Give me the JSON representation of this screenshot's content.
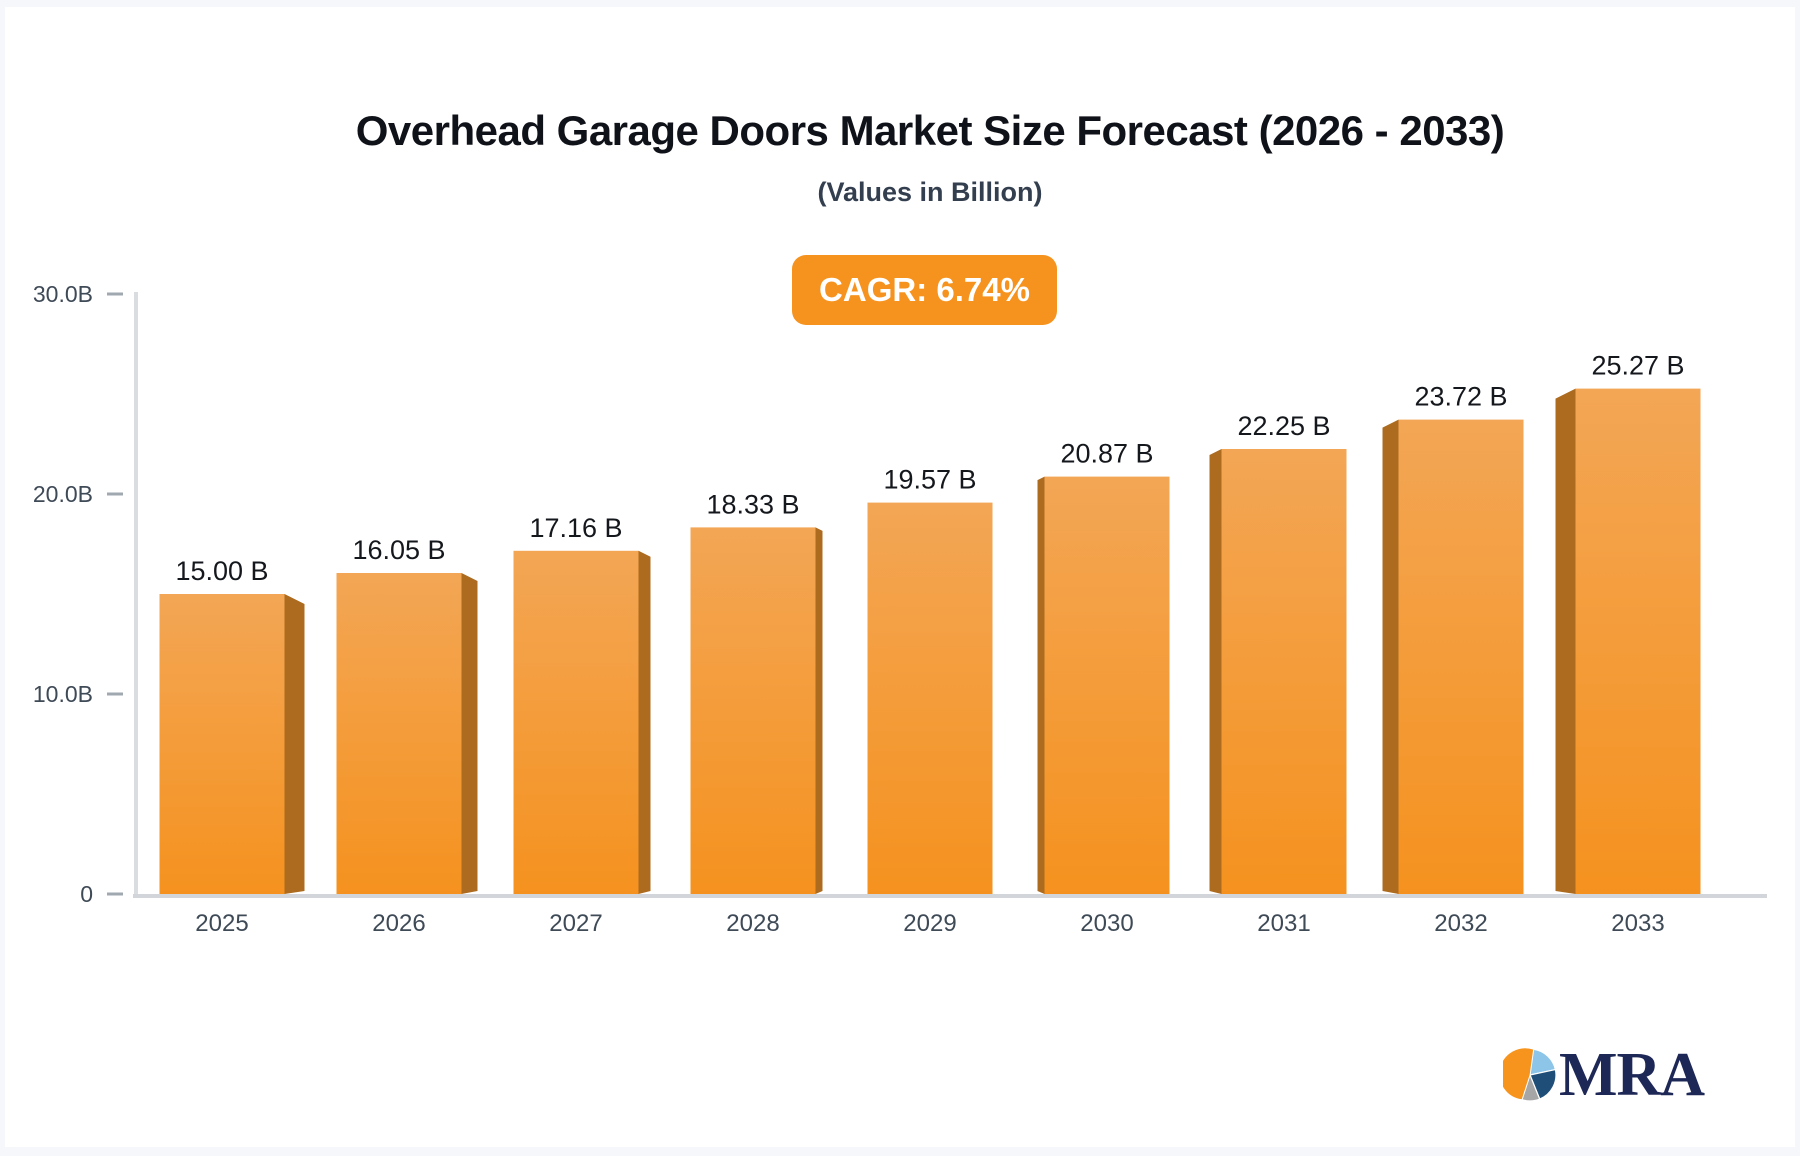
{
  "header": {
    "title": "Overhead Garage Doors Market Size Forecast (2026 - 2033)",
    "subtitle": "(Values in Billion)"
  },
  "badge": {
    "label": "CAGR: 6.74%",
    "cagr_percent": 6.74,
    "background": "#f6931e",
    "text_color": "#ffffff"
  },
  "chart_data": {
    "type": "bar",
    "title": "Overhead Garage Doors Market Size Forecast (2026 - 2033)",
    "subtitle": "(Values in Billion)",
    "categories": [
      "2025",
      "2026",
      "2027",
      "2028",
      "2029",
      "2030",
      "2031",
      "2032",
      "2033"
    ],
    "values": [
      15.0,
      16.05,
      17.16,
      18.33,
      19.57,
      20.87,
      22.25,
      23.72,
      25.27
    ],
    "value_labels": [
      "15.00 B",
      "16.05 B",
      "17.16 B",
      "18.33 B",
      "19.57 B",
      "20.87 B",
      "22.25 B",
      "23.72 B",
      "25.27 B"
    ],
    "xlabel": "",
    "ylabel": "",
    "ylim": [
      0,
      30
    ],
    "yticks": [
      {
        "value": 0,
        "label": "0"
      },
      {
        "value": 10,
        "label": "10.0B"
      },
      {
        "value": 20,
        "label": "20.0B"
      },
      {
        "value": 30,
        "label": "30.0B"
      }
    ],
    "grid": false,
    "legend": false,
    "style_3d": true,
    "colors": {
      "bar_top": "#f3a655",
      "bar_bottom": "#f5921f",
      "bar_side": "#ac6b1f",
      "axis_line": "#dadde0",
      "baseline": "#d2d5d9",
      "tick": "#a0a8b0",
      "axis_label": "#3f4a57",
      "value_label": "#14171c"
    }
  },
  "logo": {
    "text": "MRA",
    "text_color": "#1e2857",
    "pie_colors": {
      "orange": "#f7941e",
      "light_blue": "#8cc5e8",
      "navy": "#1f4e79",
      "gray": "#a6a6a6"
    }
  }
}
